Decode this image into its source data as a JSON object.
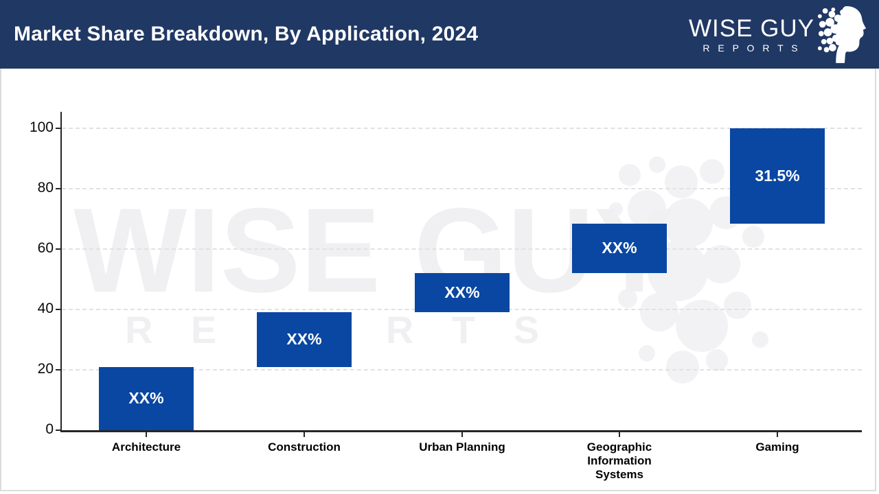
{
  "header": {
    "title": "Market Share Breakdown, By Application, 2024",
    "logo": {
      "line1": "WISE GUY",
      "line2": "R E P O R T S"
    }
  },
  "watermark": {
    "line1": "WISE GUY",
    "line2": "R E P O R T S"
  },
  "chart_data": {
    "type": "bar",
    "subtype": "waterfall",
    "title": "Market Share Breakdown, By Application, 2024",
    "categories": [
      "Architecture",
      "Construction",
      "Urban Planning",
      "Geographic Information Systems",
      "Gaming"
    ],
    "segments": [
      {
        "category": "Architecture",
        "category_display": "Architecture",
        "start": 0,
        "end": 21,
        "label": "XX%"
      },
      {
        "category": "Construction",
        "category_display": "Construction",
        "start": 21,
        "end": 39,
        "label": "XX%"
      },
      {
        "category": "Urban Planning",
        "category_display": "Urban Planning",
        "start": 39,
        "end": 52,
        "label": "XX%"
      },
      {
        "category": "Geographic Information Systems",
        "category_display": "Geographic\nInformation\nSystems",
        "start": 52,
        "end": 68.5,
        "label": "XX%"
      },
      {
        "category": "Gaming",
        "category_display": "Gaming",
        "start": 68.5,
        "end": 100,
        "label": "31.5%"
      }
    ],
    "ylim": [
      0,
      100
    ],
    "yticks": [
      0,
      20,
      40,
      60,
      80,
      100
    ],
    "grid": "horizontal-dashed",
    "legend": "none",
    "bar_color": "#0a47a2",
    "label_color": "#ffffff"
  },
  "colors": {
    "header_bg": "#203864",
    "axis": "#262626",
    "gridline": "#e1e1e1",
    "watermark": "#f0f0f2",
    "border": "#dcdcdc"
  }
}
